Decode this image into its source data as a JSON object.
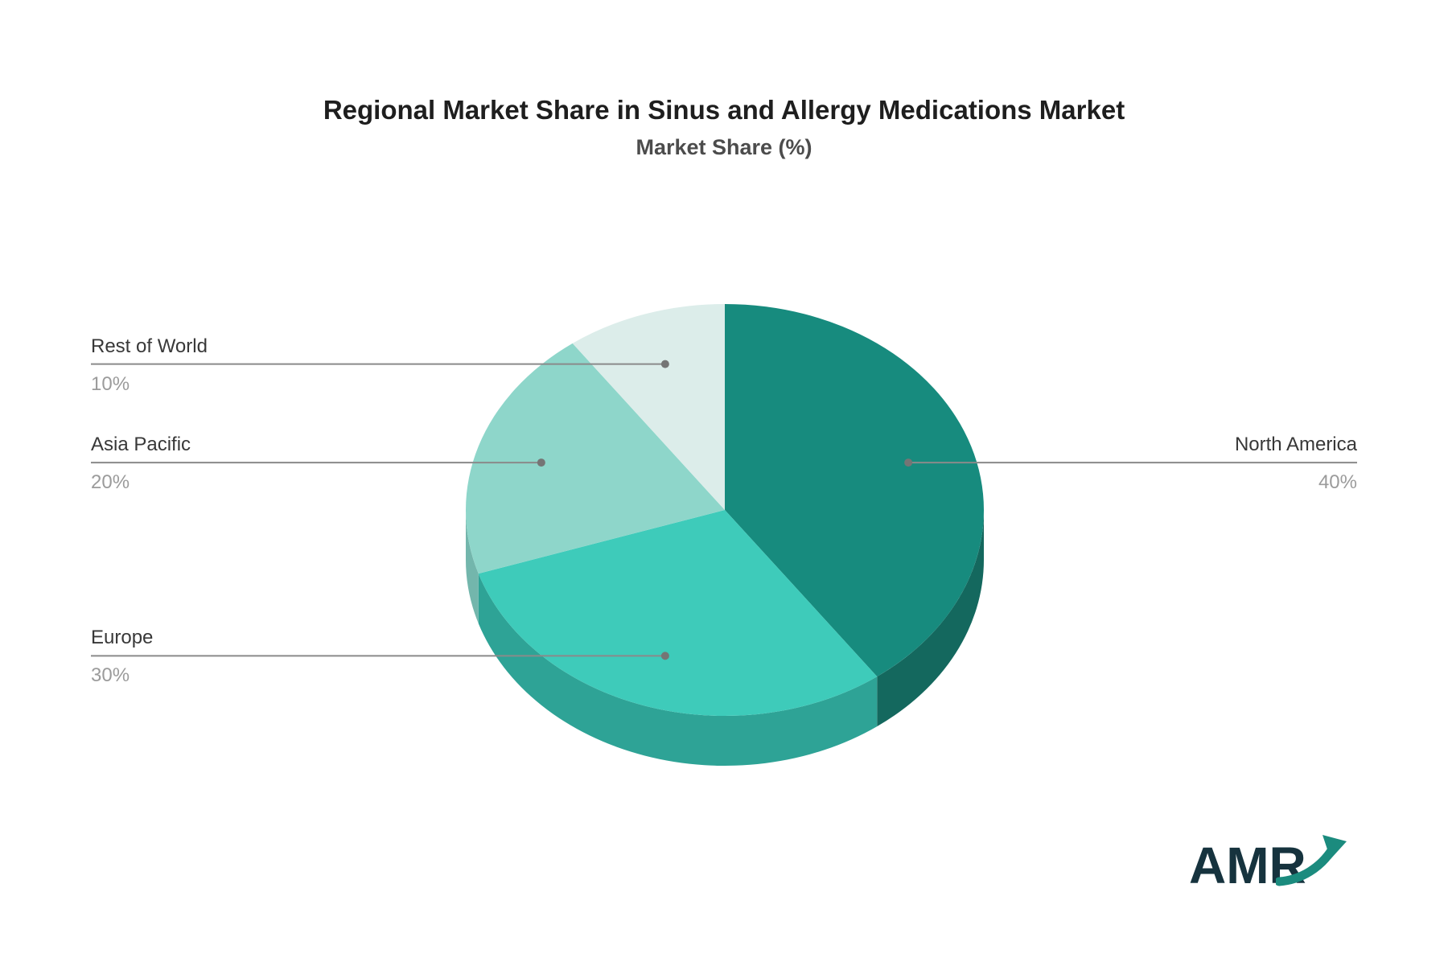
{
  "chart_data": {
    "type": "pie",
    "title": "Regional Market Share in Sinus and Allergy Medications Market",
    "subtitle": "Market Share (%)",
    "unit": "%",
    "direction": "clockwise",
    "start_angle_deg": 0,
    "effect_3d": true,
    "legend_position": "none",
    "leader_line_color": "#8a8a8a",
    "leader_dot_color": "#757575",
    "slices": [
      {
        "label": "North America",
        "value": 40,
        "display": "40%",
        "color": "#178b7e",
        "side_color": "#14685e",
        "label_side": "right"
      },
      {
        "label": "Europe",
        "value": 30,
        "display": "30%",
        "color": "#3ecbba",
        "side_color": "#2ea396",
        "label_side": "left"
      },
      {
        "label": "Asia Pacific",
        "value": 20,
        "display": "20%",
        "color": "#8ed6ca",
        "side_color": "#73b6ac",
        "label_side": "left"
      },
      {
        "label": "Rest of World",
        "value": 10,
        "display": "10%",
        "color": "#dcedea",
        "side_color": "#b9d6d0",
        "label_side": "left"
      }
    ]
  },
  "logo": {
    "text": "AMR",
    "text_color": "#16333e",
    "arrow_color": "#1b8b7e"
  }
}
